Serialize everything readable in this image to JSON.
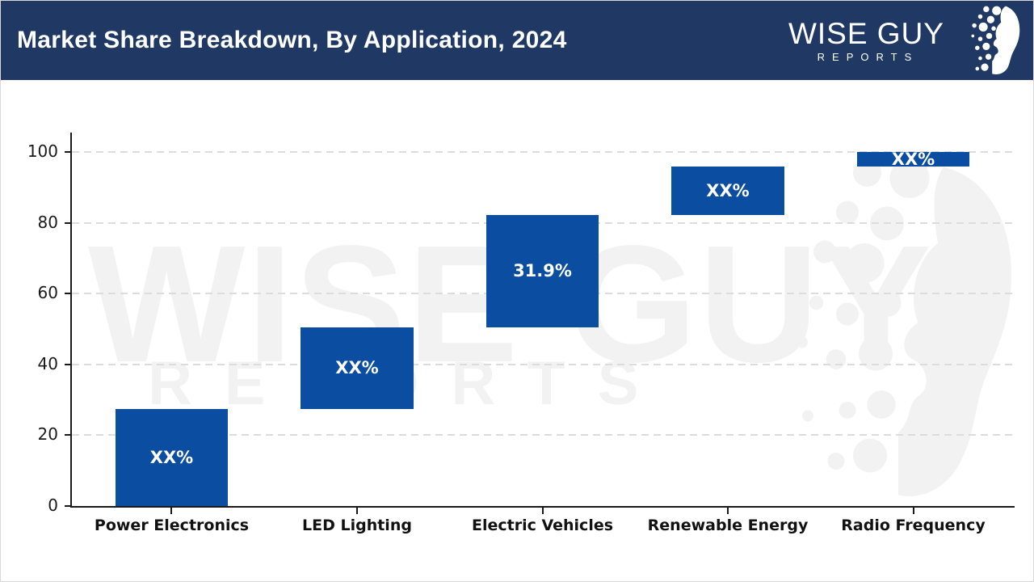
{
  "header": {
    "title": "Market Share Breakdown, By Application, 2024",
    "bg_color": "#203864",
    "logo": {
      "line1": "WISE GUY",
      "line2": "REPORTS"
    }
  },
  "watermark": {
    "line1": "WISE GUY",
    "line2": "REPORTS"
  },
  "chart_data": {
    "type": "bar",
    "subtype": "waterfall-floating-bars",
    "title": "Market Share Breakdown, By Application, 2024",
    "categories": [
      "Power Electronics",
      "LED Lighting",
      "Electric Vehicles",
      "Renewable Energy",
      "Radio Frequency"
    ],
    "segments": [
      {
        "category": "Power Electronics",
        "start": 0,
        "end": 27.5,
        "label": "XX%"
      },
      {
        "category": "LED Lighting",
        "start": 27.5,
        "end": 50.4,
        "label": "XX%"
      },
      {
        "category": "Electric Vehicles",
        "start": 50.4,
        "end": 82.3,
        "label": "31.9%"
      },
      {
        "category": "Renewable Energy",
        "start": 82.3,
        "end": 95.9,
        "label": "XX%"
      },
      {
        "category": "Radio Frequency",
        "start": 95.9,
        "end": 100,
        "label": "XX%"
      }
    ],
    "yticks": [
      0,
      20,
      40,
      60,
      80,
      100
    ],
    "ylim": [
      0,
      105.5
    ],
    "xlabel": "",
    "ylabel": "",
    "grid": true,
    "grid_style": "dashed",
    "legend": "none",
    "bar_color": "#0a4da1",
    "axis_color": "#1a1a1a",
    "grid_color": "#dcdcdc",
    "label_color": "#ffffff"
  }
}
